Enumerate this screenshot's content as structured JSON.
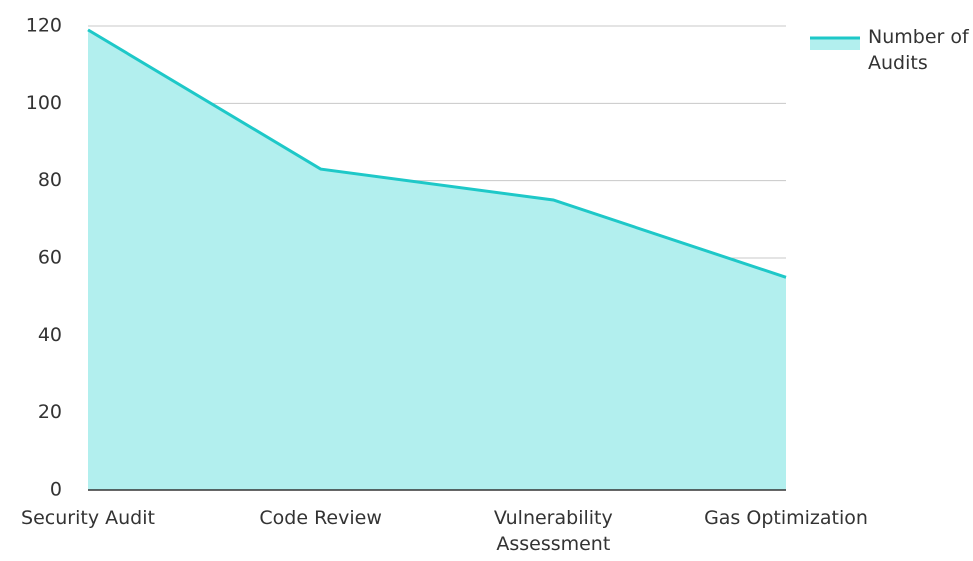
{
  "chart_data": {
    "type": "area",
    "categories": [
      "Security Audit",
      "Code Review",
      "Vulnerability Assessment",
      "Gas Optimization"
    ],
    "series": [
      {
        "name": "Number of Audits",
        "color": "#1ec8c8",
        "fill": "#b2efee",
        "values": [
          119,
          83,
          75,
          55
        ]
      }
    ],
    "ylim": [
      0,
      120
    ],
    "yticks": [
      0,
      20,
      40,
      60,
      80,
      100,
      120
    ],
    "grid": true,
    "legend": "top-right"
  }
}
